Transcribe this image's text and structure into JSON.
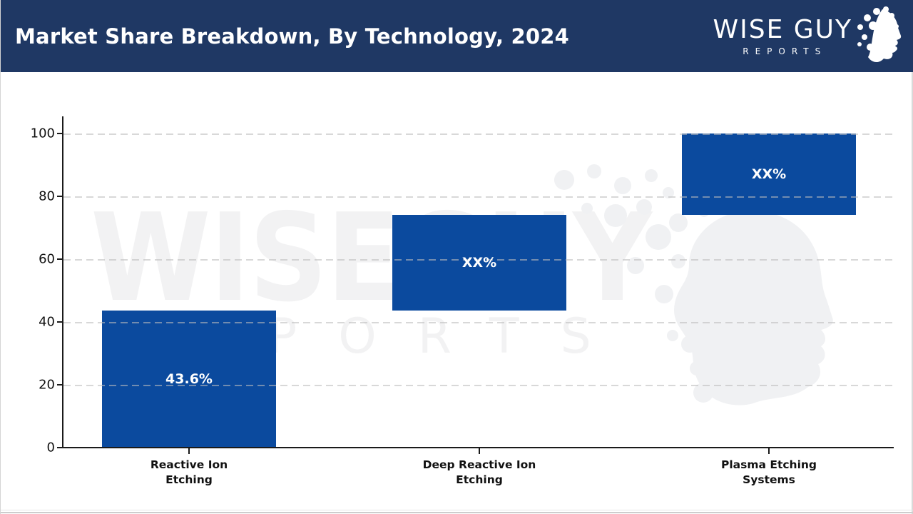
{
  "header": {
    "title": "Market Share Breakdown, By Technology, 2024",
    "logo": {
      "brand_name": "WISE GUY",
      "brand_sub": "REPORTS"
    }
  },
  "watermark": {
    "word1": "WISE",
    "word2": "GUY",
    "row2": "REPORTS"
  },
  "chart_data": {
    "type": "bar",
    "subtype": "stacked-waterfall-segments",
    "title": "Market Share Breakdown, By Technology, 2024",
    "categories": [
      {
        "line1": "Reactive Ion",
        "line2": "Etching"
      },
      {
        "line1": "Deep Reactive Ion",
        "line2": "Etching"
      },
      {
        "line1": "Plasma Etching",
        "line2": "Systems"
      }
    ],
    "segments": [
      {
        "category": "Reactive Ion Etching",
        "label": "43.6%",
        "value": 43.6,
        "masked": false,
        "start": 0,
        "end": 43.6
      },
      {
        "category": "Deep Reactive Ion Etching",
        "label": "XX%",
        "value": null,
        "masked": true,
        "start": 43.6,
        "end": 74.2
      },
      {
        "category": "Plasma Etching Systems",
        "label": "XX%",
        "value": null,
        "masked": true,
        "start": 74.2,
        "end": 100
      }
    ],
    "y_ticks": [
      0,
      20,
      40,
      60,
      80,
      100
    ],
    "ylim": [
      0,
      105.5
    ],
    "grid": "horizontal-dashed",
    "legend": "none",
    "xlabel": "",
    "ylabel": "",
    "bar_color": "#0b4a9e",
    "bar_label_color": "#ffffff"
  },
  "colors": {
    "header_bg": "#1f3864",
    "bar": "#0b4a9e",
    "axis": "#1a1a1a",
    "grid": "#d9d9d9",
    "watermark": "#f2f2f3",
    "tick_text": "#111111"
  }
}
